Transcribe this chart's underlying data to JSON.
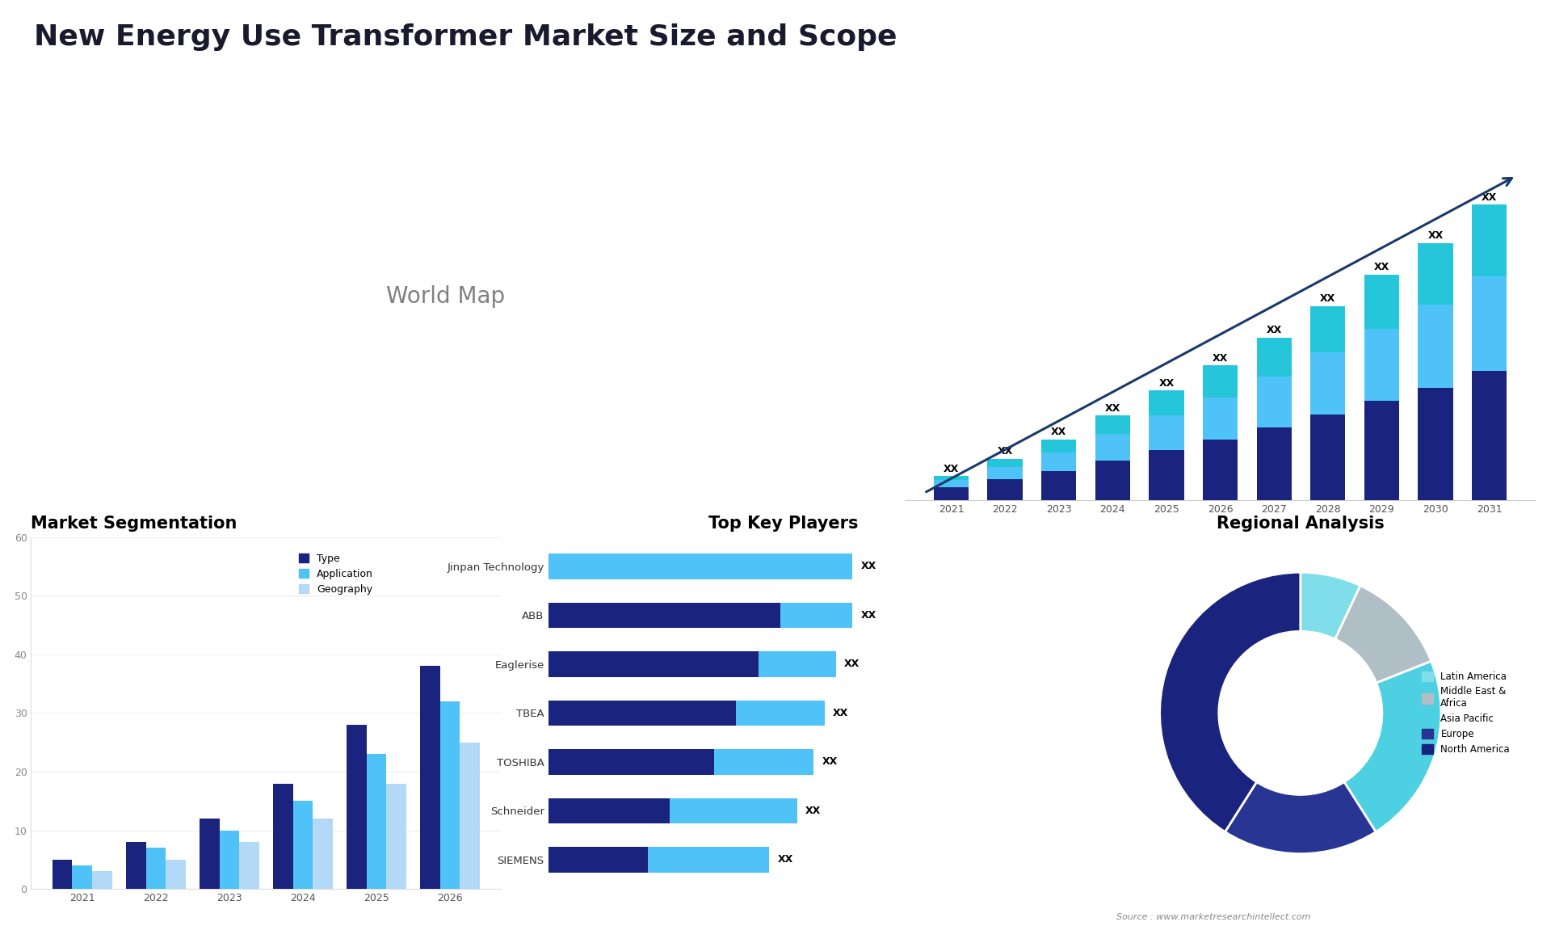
{
  "title": "New Energy Use Transformer Market Size and Scope",
  "title_fontsize": 26,
  "title_color": "#1a1a2e",
  "bg_color": "#ffffff",
  "bar_chart": {
    "years": [
      2021,
      2022,
      2023,
      2024,
      2025,
      2026,
      2027,
      2028,
      2029,
      2030,
      2031
    ],
    "seg1": [
      1.0,
      1.6,
      2.2,
      3.0,
      3.8,
      4.6,
      5.5,
      6.5,
      7.5,
      8.5,
      9.8
    ],
    "seg2": [
      0.5,
      0.9,
      1.4,
      2.0,
      2.6,
      3.2,
      3.9,
      4.7,
      5.5,
      6.3,
      7.2
    ],
    "seg3": [
      0.3,
      0.6,
      1.0,
      1.4,
      1.9,
      2.4,
      2.9,
      3.5,
      4.1,
      4.7,
      5.4
    ],
    "color1": "#1a237e",
    "color2": "#4fc3f7",
    "color3": "#26c6da",
    "label_text": "XX",
    "arrow_color": "#1a3a6b"
  },
  "segmentation_chart": {
    "title": "Market Segmentation",
    "years": [
      2021,
      2022,
      2023,
      2024,
      2025,
      2026
    ],
    "type_vals": [
      5,
      8,
      12,
      18,
      28,
      38
    ],
    "app_vals": [
      4,
      7,
      10,
      15,
      23,
      32
    ],
    "geo_vals": [
      3,
      5,
      8,
      12,
      18,
      25
    ],
    "color_type": "#1a237e",
    "color_app": "#4fc3f7",
    "color_geo": "#b3d9f7",
    "ylim": [
      0,
      60
    ],
    "yticks": [
      0,
      10,
      20,
      30,
      40,
      50,
      60
    ]
  },
  "key_players": {
    "title": "Top Key Players",
    "players": [
      "Jinpan Technology",
      "ABB",
      "Eaglerise",
      "TBEA",
      "TOSHIBA",
      "Schneider",
      "SIEMENS"
    ],
    "seg1_vals": [
      0.0,
      0.42,
      0.38,
      0.34,
      0.3,
      0.22,
      0.18
    ],
    "seg2_vals": [
      0.55,
      0.13,
      0.14,
      0.16,
      0.18,
      0.23,
      0.22
    ],
    "color1": "#1a237e",
    "color2": "#4fc3f7",
    "label": "XX"
  },
  "regional_analysis": {
    "title": "Regional Analysis",
    "labels": [
      "Latin America",
      "Middle East &\nAfrica",
      "Asia Pacific",
      "Europe",
      "North America"
    ],
    "sizes": [
      7,
      12,
      22,
      18,
      41
    ],
    "colors": [
      "#80deea",
      "#b0bec5",
      "#4dd0e1",
      "#283593",
      "#1a237e"
    ],
    "legend_colors": [
      "#80deea",
      "#b0bec5",
      "#4dd0e1",
      "#283593",
      "#1a237e"
    ]
  },
  "map_colors": {
    "default": "#d0d3dc",
    "canada": "#2035a0",
    "usa": "#5bbcd6",
    "mexico": "#7ab8d8",
    "brazil": "#2035a0",
    "argentina": "#8ab4d8",
    "uk": "#8090c8",
    "france": "#1a237e",
    "germany": "#8090c8",
    "spain": "#8090c8",
    "italy": "#8090c8",
    "saudi_arabia": "#8090c8",
    "south_africa": "#8090c8",
    "china": "#5060c0",
    "india": "#8090c8",
    "japan": "#8090c8"
  },
  "source_text": "Source : www.marketresearchintellect.com"
}
